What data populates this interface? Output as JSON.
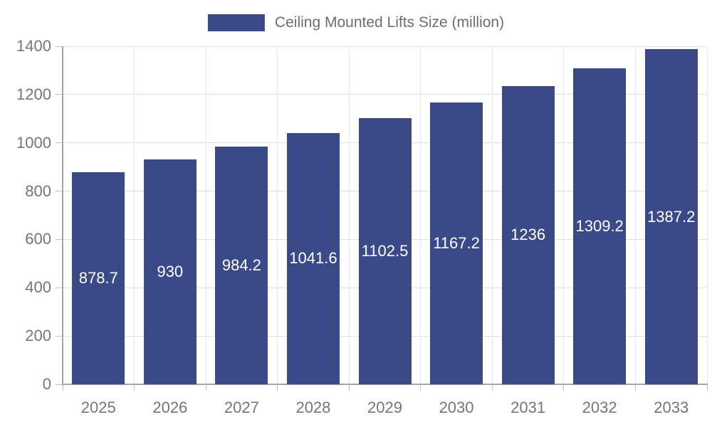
{
  "chart_data": {
    "type": "bar",
    "title": "Ceiling Mounted Lifts Size (million)",
    "legend": [
      "Ceiling Mounted Lifts Size (million)"
    ],
    "legend_position": "top-center",
    "categories": [
      "2025",
      "2026",
      "2027",
      "2028",
      "2029",
      "2030",
      "2031",
      "2032",
      "2033"
    ],
    "series": [
      {
        "name": "Ceiling Mounted Lifts Size (million)",
        "values": [
          878.7,
          930,
          984.2,
          1041.6,
          1102.5,
          1167.2,
          1236,
          1309.2,
          1387.2
        ],
        "value_labels": [
          "878.7",
          "930",
          "984.2",
          "1041.6",
          "1102.5",
          "1167.2",
          "1236",
          "1309.2",
          "1387.2"
        ]
      }
    ],
    "xlabel": "",
    "ylabel": "",
    "ylim": [
      0,
      1400
    ],
    "yticks": [
      0,
      200,
      400,
      600,
      800,
      1000,
      1200,
      1400
    ],
    "grid": true,
    "colors": {
      "bar": "#3a4a88",
      "value_label": "#ffffff",
      "axis_text": "#757575",
      "legend_text": "#6e6e6e",
      "grid_line": "#e0e0e0",
      "axis_line": "#a5a5a5"
    }
  }
}
